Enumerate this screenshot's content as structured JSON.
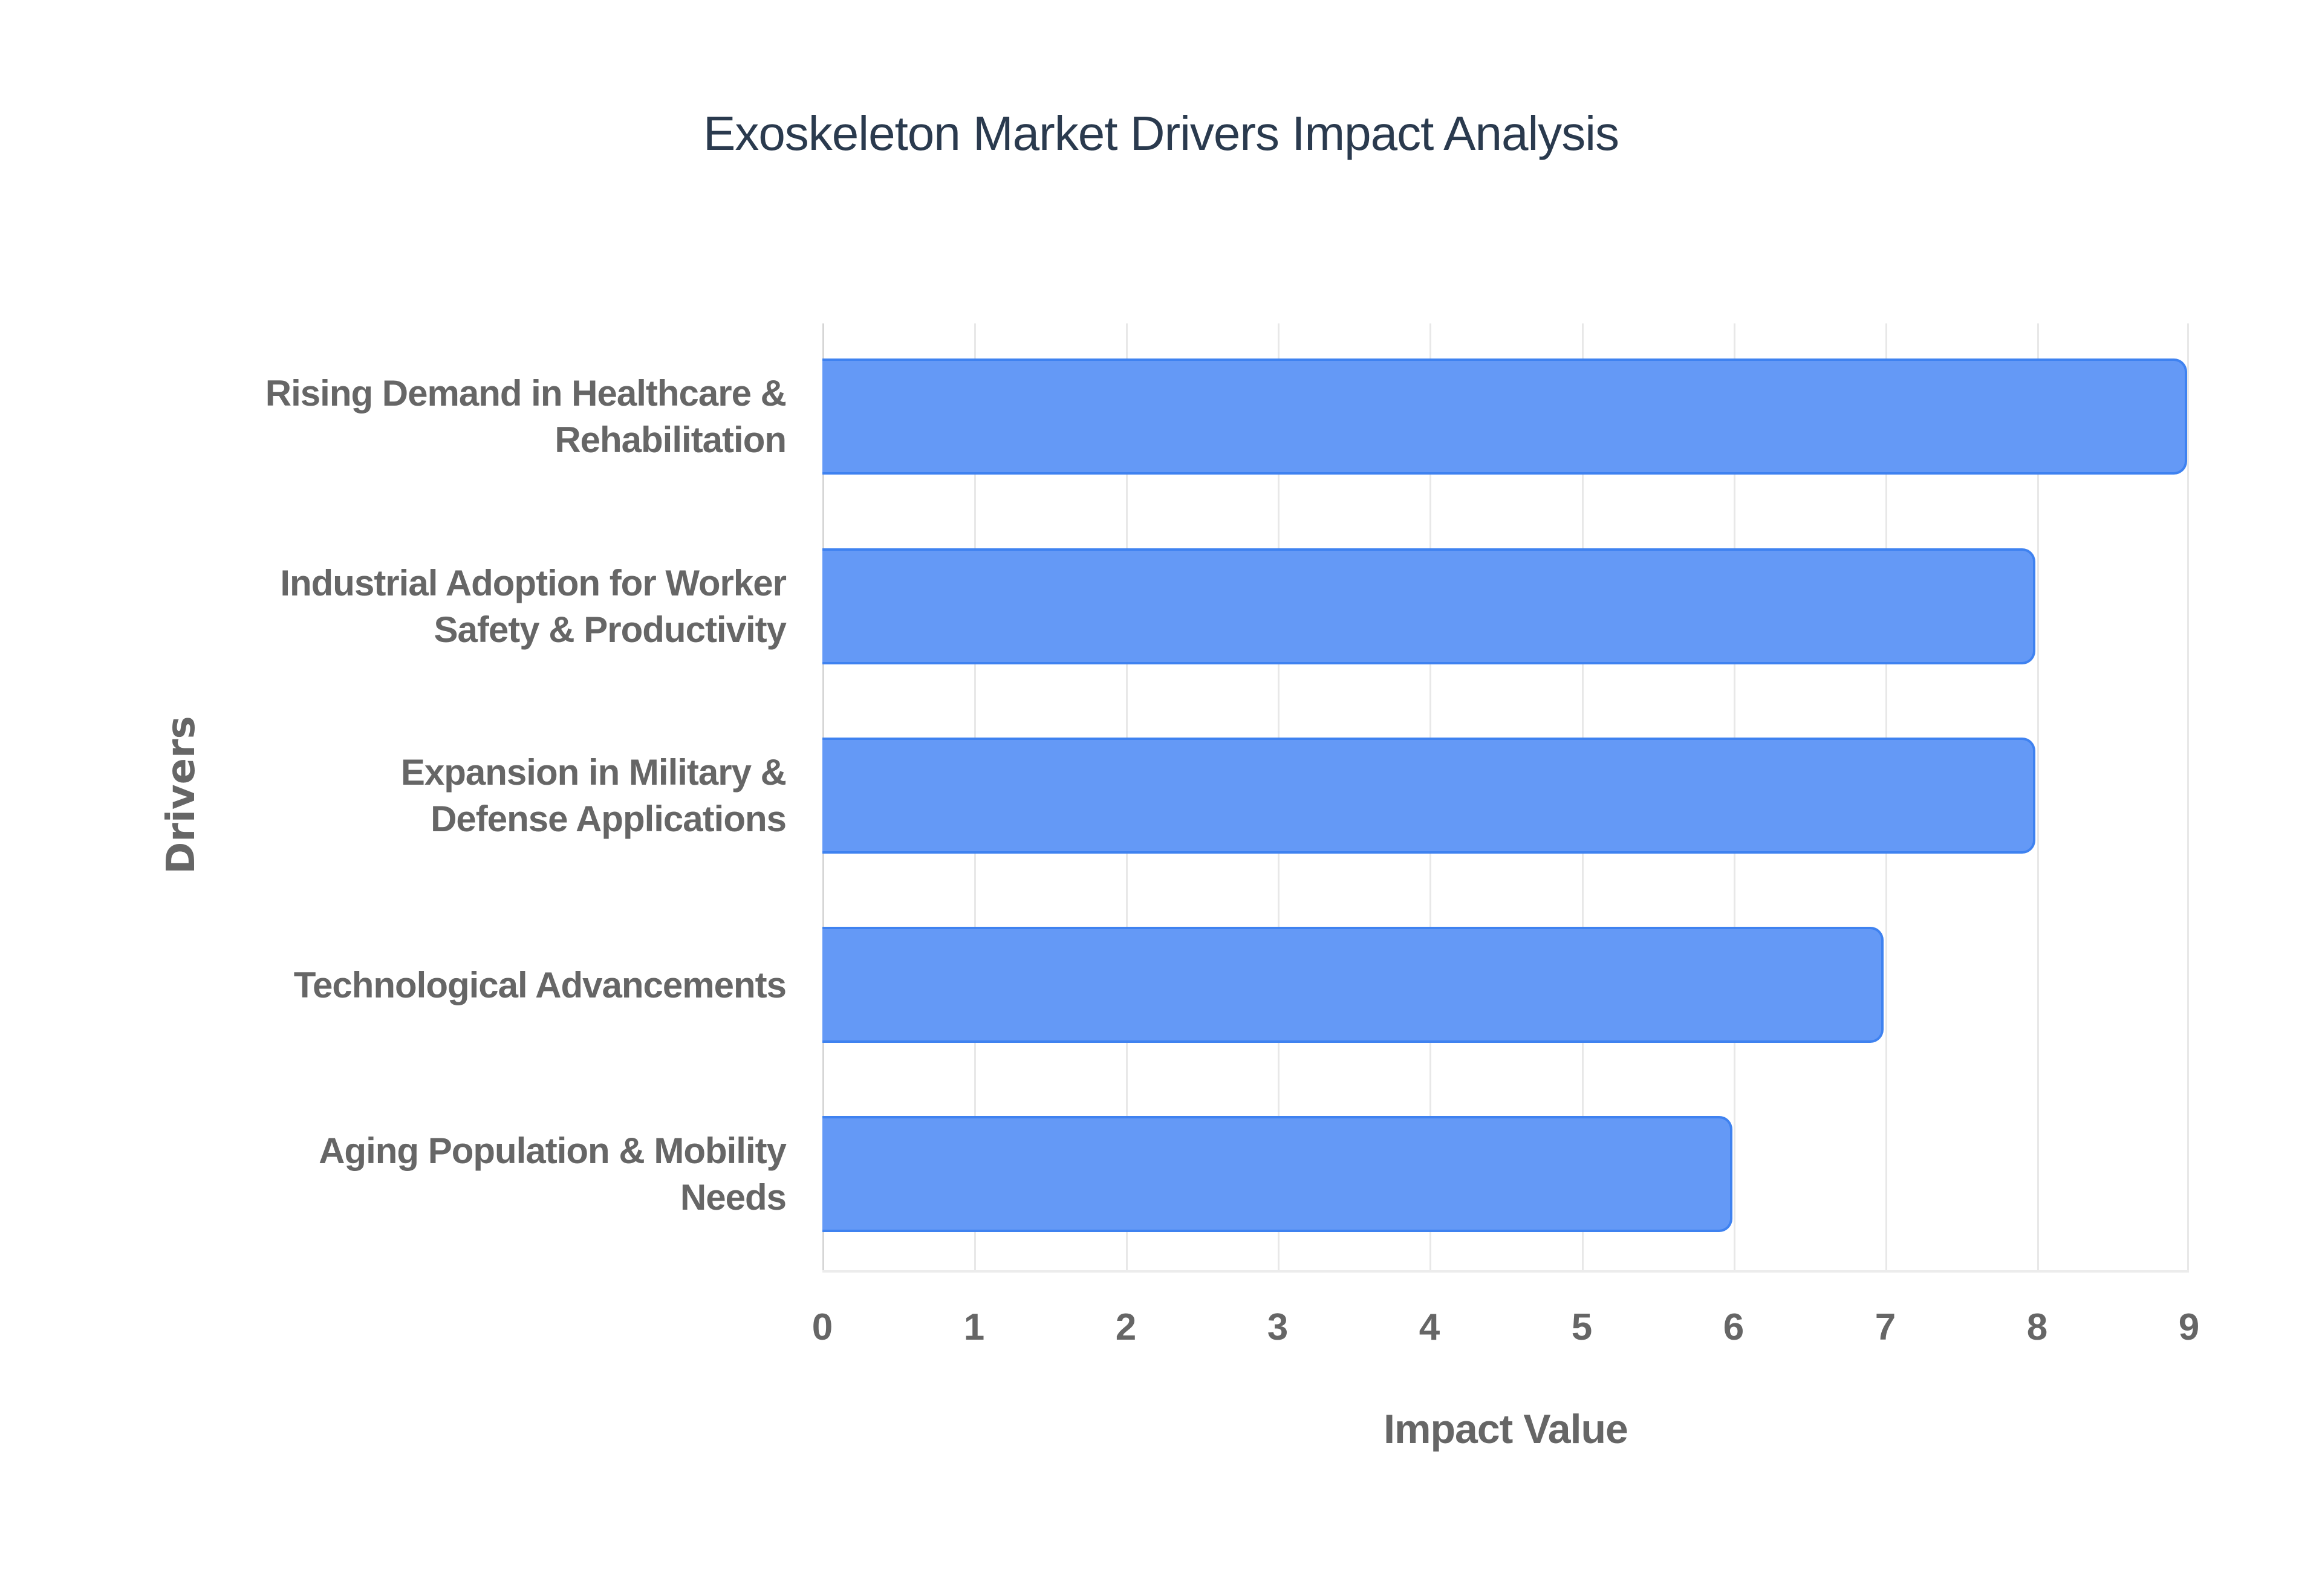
{
  "chart_data": {
    "type": "bar",
    "orientation": "horizontal",
    "title": "Exoskeleton Market Drivers Impact Analysis",
    "xlabel": "Impact Value",
    "ylabel": "Drivers",
    "categories": [
      "Rising Demand in Healthcare & Rehabilitation",
      "Industrial Adoption for Worker Safety & Productivity",
      "Expansion in Military & Defense Applications",
      "Technological Advancements",
      "Aging Population & Mobility Needs"
    ],
    "values": [
      9,
      8,
      8,
      7,
      6
    ],
    "xlim": [
      0,
      9
    ],
    "xticks": [
      "0",
      "1",
      "2",
      "3",
      "4",
      "5",
      "6",
      "7",
      "8",
      "9"
    ],
    "grid": true,
    "legend": null,
    "colors": {
      "bar_fill": "#6499f6",
      "bar_border": "#3f82f0",
      "title": "#2a3a4e",
      "axis_text": "#666666",
      "grid": "#e8e8e8"
    }
  },
  "labels": {
    "cat0_line1": "Rising Demand in Healthcare &",
    "cat0_line2": "Rehabilitation",
    "cat1_line1": "Industrial Adoption for Worker",
    "cat1_line2": "Safety & Productivity",
    "cat2_line1": "Expansion in Military &",
    "cat2_line2": "Defense Applications",
    "cat3_line1": "Technological Advancements",
    "cat4_line1": "Aging Population & Mobility",
    "cat4_line2": "Needs"
  }
}
